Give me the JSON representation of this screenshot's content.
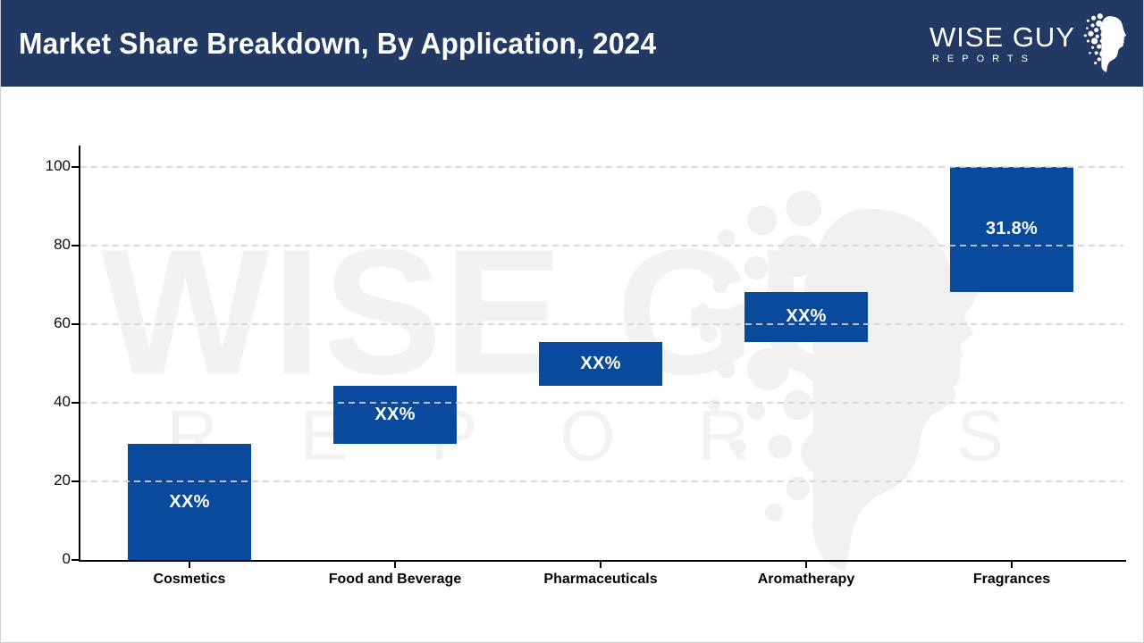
{
  "header": {
    "title": "Market Share Breakdown, By Application, 2024",
    "logo": {
      "line1": "WISE GUY",
      "line2": "REPORTS",
      "icon": "dotted-face-profile"
    }
  },
  "watermark": {
    "line1": "WISE GUY",
    "line2": "REPORTS"
  },
  "chart_data": {
    "type": "bar",
    "variant": "floating-waterfall",
    "title": "Market Share Breakdown, By Application, 2024",
    "xlabel": "",
    "ylabel": "",
    "ylim": [
      0,
      100
    ],
    "yticks": [
      0,
      20,
      40,
      60,
      80,
      100
    ],
    "grid": "horizontal-dashed",
    "legend": "none",
    "categories": [
      "Cosmetics",
      "Food and Beverage",
      "Pharmaceuticals",
      "Aromatherapy",
      "Fragrances"
    ],
    "bars": [
      {
        "category": "Cosmetics",
        "start": 0,
        "end": 29.5,
        "value": 29.5,
        "label": "XX%"
      },
      {
        "category": "Food and Beverage",
        "start": 29.5,
        "end": 44.3,
        "value": 14.8,
        "label": "XX%"
      },
      {
        "category": "Pharmaceuticals",
        "start": 44.3,
        "end": 55.5,
        "value": 11.2,
        "label": "XX%"
      },
      {
        "category": "Aromatherapy",
        "start": 55.5,
        "end": 68.2,
        "value": 12.7,
        "label": "XX%"
      },
      {
        "category": "Fragrances",
        "start": 68.2,
        "end": 100,
        "value": 31.8,
        "label": "31.8%"
      }
    ]
  },
  "colors": {
    "header_bg": "#223a63",
    "bar": "#0a4a9c",
    "watermark": "#f2f2f2",
    "grid": "#d4d4d4",
    "axis": "#000000"
  }
}
